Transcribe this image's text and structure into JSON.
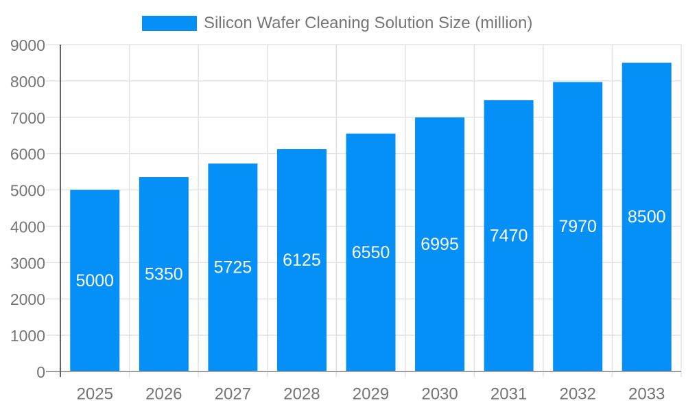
{
  "chart_data": {
    "type": "bar",
    "title": "Silicon Wafer Cleaning Solution Size (million)",
    "series_name": "Silicon Wafer Cleaning Solution Size (million)",
    "categories": [
      "2025",
      "2026",
      "2027",
      "2028",
      "2029",
      "2030",
      "2031",
      "2032",
      "2033"
    ],
    "values": [
      5000,
      5350,
      5725,
      6125,
      6550,
      6995,
      7470,
      7970,
      8500
    ],
    "xlabel": "",
    "ylabel": "",
    "ylim": [
      0,
      9000
    ],
    "ytick_interval": 1000,
    "yticks": [
      "0",
      "1000",
      "2000",
      "3000",
      "4000",
      "5000",
      "6000",
      "7000",
      "8000",
      "9000"
    ],
    "grid": true,
    "legend_position": "top-center",
    "value_labels_position": "inside-center",
    "colors": {
      "bar": "#0590f8",
      "grid": "#e3e3e3",
      "axis_line": "#616161",
      "baseline": "#9e9e9e",
      "axis_text": "#757575",
      "value_label_text": "#ffffff",
      "background": "#ffffff"
    }
  },
  "legend": {
    "label": "Silicon Wafer Cleaning Solution Size (million)"
  }
}
